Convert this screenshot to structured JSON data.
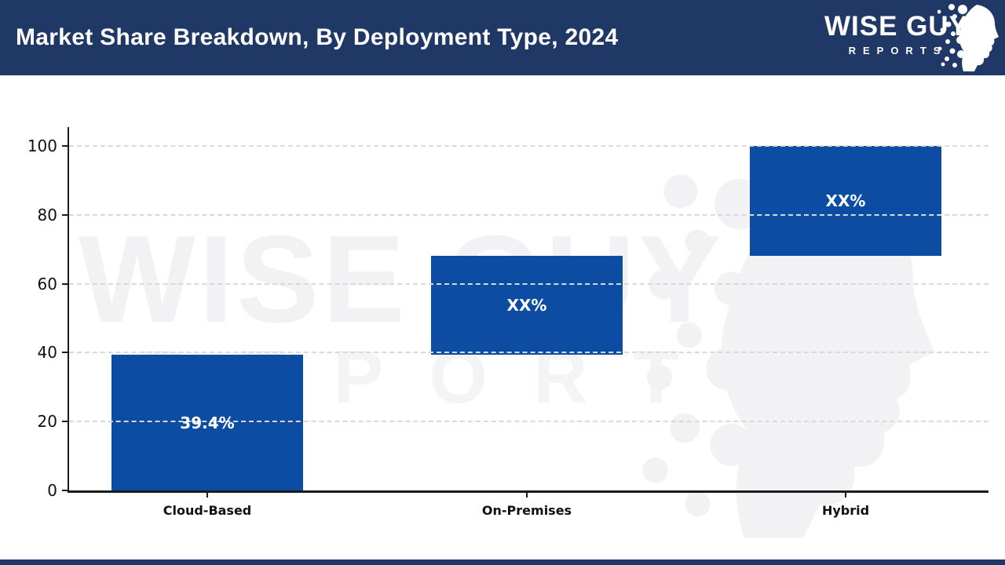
{
  "header": {
    "title": "Market Share Breakdown, By Deployment Type, 2024",
    "logo": {
      "name": "WISE GUY",
      "tagline": "REPORTS"
    }
  },
  "watermark": {
    "name": "WISE GUY",
    "tagline": "REPORTS"
  },
  "chart_data": {
    "type": "bar",
    "subtype": "waterfall",
    "title": "Market Share Breakdown, By Deployment Type, 2024",
    "categories": [
      "Cloud-Based",
      "On-Premises",
      "Hybrid"
    ],
    "segments": [
      {
        "category": "Cloud-Based",
        "label": "39.4%",
        "start": 0,
        "end": 39.4,
        "value": 39.4
      },
      {
        "category": "On-Premises",
        "label": "XX%",
        "start": 39.4,
        "end": 68.1,
        "value_estimate": 28.7
      },
      {
        "category": "Hybrid",
        "label": "XX%",
        "start": 68.1,
        "end": 100,
        "value_estimate": 31.9
      }
    ],
    "xlabel": "",
    "ylabel": "",
    "ylim": [
      0,
      100
    ],
    "yticks": [
      0,
      20,
      40,
      60,
      80,
      100
    ],
    "grid": {
      "horizontal": true,
      "style": "dashed",
      "color": "#d9d9d9",
      "drawn_over_bars": true
    },
    "legend": null,
    "bar_color": "#0c4da3",
    "bar_label_color": "#ffffff"
  },
  "colors": {
    "header_bg": "#203865",
    "footer_bg": "#203865",
    "bar": "#0c4da3",
    "watermark": "#f2f2f4"
  }
}
